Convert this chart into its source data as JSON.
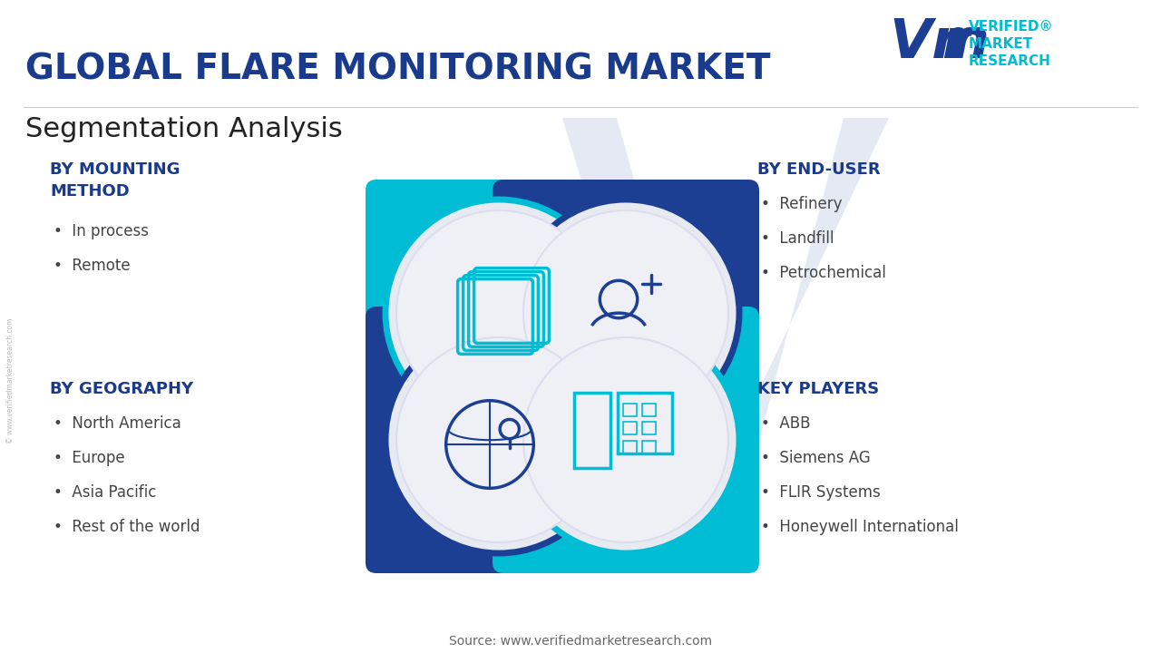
{
  "title": "GLOBAL FLARE MONITORING MARKET",
  "subtitle": "Segmentation Analysis",
  "bg_color": "#ffffff",
  "title_color": "#1a3a8c",
  "subtitle_color": "#222222",
  "teal_color": "#00bcd4",
  "dark_blue_color": "#1c3f94",
  "light_gray_circle": "#eaecf4",
  "text_color": "#333333",
  "bullet_color": "#444444",
  "source_text": "Source: www.verifiedmarketresearch.com",
  "vmr_text_color": "#00bcd4",
  "vmr_logo_color": "#1c3f94",
  "sections": [
    {
      "title": "BY MOUNTING\nMETHOD",
      "items": [
        "In process",
        "Remote"
      ]
    },
    {
      "title": "BY END-USER",
      "items": [
        "Refinery",
        "Landfill",
        "Petrochemical"
      ]
    },
    {
      "title": "BY GEOGRAPHY",
      "items": [
        "North America",
        "Europe",
        "Asia Pacific",
        "Rest of the world"
      ]
    },
    {
      "title": "KEY PLAYERS",
      "items": [
        "ABB",
        "Siemens AG",
        "FLIR Systems",
        "Honeywell International"
      ]
    }
  ]
}
